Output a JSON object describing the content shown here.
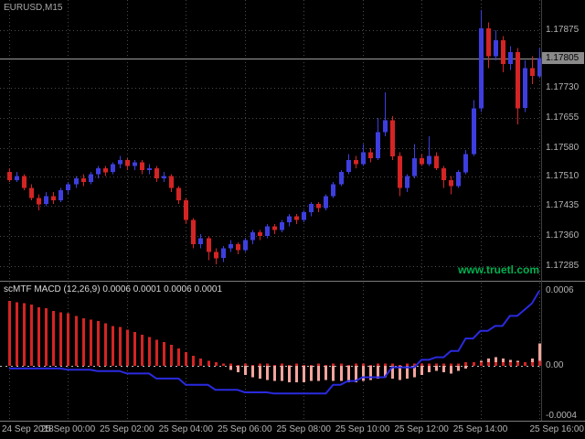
{
  "watermark": {
    "text": "www.truetl.com",
    "color": "#00b050"
  },
  "colors": {
    "background": "#000000",
    "grid": "#4a4a4a",
    "bull": "#3e3ee0",
    "bear": "#d42424",
    "bid_line": "#9c9c9c",
    "zero_line": "#c0c0c0",
    "axis_text": "#b4b4b4",
    "separator": "#7a7a7a"
  },
  "chart_data": [
    {
      "type": "candlestick",
      "title": "EURUSD,M15",
      "symbol": "EURUSD",
      "timeframe": "M15",
      "current_price": "1.17805",
      "y_ticks": [
        "1.17875",
        "1.17805",
        "1.17730",
        "1.17655",
        "1.17580",
        "1.17510",
        "1.17435",
        "1.17360",
        "1.17285"
      ],
      "x_ticks": [
        "24 Sep 2018",
        "25 Sep 00:00",
        "25 Sep 02:00",
        "25 Sep 04:00",
        "25 Sep 06:00",
        "25 Sep 08:00",
        "25 Sep 10:00",
        "25 Sep 12:00",
        "25 Sep 14:00",
        "25 Sep 16:00"
      ],
      "ohlc": [
        [
          1.1752,
          1.1753,
          1.17495,
          1.175
        ],
        [
          1.175,
          1.1752,
          1.17495,
          1.1751
        ],
        [
          1.1751,
          1.17515,
          1.17475,
          1.1748
        ],
        [
          1.1748,
          1.1749,
          1.1745,
          1.17455
        ],
        [
          1.17455,
          1.17465,
          1.17425,
          1.1744
        ],
        [
          1.1744,
          1.1747,
          1.17435,
          1.1746
        ],
        [
          1.1746,
          1.1747,
          1.1744,
          1.1745
        ],
        [
          1.1745,
          1.1748,
          1.17445,
          1.17475
        ],
        [
          1.17475,
          1.17495,
          1.17465,
          1.1749
        ],
        [
          1.1749,
          1.1751,
          1.1748,
          1.17505
        ],
        [
          1.17505,
          1.17515,
          1.17485,
          1.17495
        ],
        [
          1.17495,
          1.1752,
          1.1749,
          1.17515
        ],
        [
          1.17515,
          1.17535,
          1.17505,
          1.1753
        ],
        [
          1.1753,
          1.17535,
          1.1751,
          1.1752
        ],
        [
          1.1752,
          1.17545,
          1.17515,
          1.1754
        ],
        [
          1.1754,
          1.1756,
          1.1753,
          1.1755
        ],
        [
          1.1755,
          1.17555,
          1.17525,
          1.17535
        ],
        [
          1.17535,
          1.1755,
          1.17525,
          1.17545
        ],
        [
          1.17545,
          1.1755,
          1.17515,
          1.17525
        ],
        [
          1.17525,
          1.1754,
          1.17515,
          1.1753
        ],
        [
          1.1753,
          1.17535,
          1.17495,
          1.17505
        ],
        [
          1.17505,
          1.1752,
          1.17495,
          1.1751
        ],
        [
          1.1751,
          1.17515,
          1.1747,
          1.1748
        ],
        [
          1.1748,
          1.17485,
          1.1744,
          1.1745
        ],
        [
          1.1745,
          1.17455,
          1.1739,
          1.174
        ],
        [
          1.174,
          1.17405,
          1.1733,
          1.1734
        ],
        [
          1.1734,
          1.17365,
          1.1733,
          1.17355
        ],
        [
          1.17355,
          1.1736,
          1.173,
          1.1732
        ],
        [
          1.1732,
          1.1733,
          1.1729,
          1.17305
        ],
        [
          1.17305,
          1.17335,
          1.17295,
          1.1733
        ],
        [
          1.1733,
          1.1735,
          1.1732,
          1.1734
        ],
        [
          1.1734,
          1.17345,
          1.17315,
          1.17325
        ],
        [
          1.17325,
          1.17355,
          1.1732,
          1.1735
        ],
        [
          1.1735,
          1.17375,
          1.1734,
          1.1737
        ],
        [
          1.1737,
          1.17375,
          1.1735,
          1.1736
        ],
        [
          1.1736,
          1.1739,
          1.17355,
          1.17385
        ],
        [
          1.17385,
          1.1739,
          1.17365,
          1.17375
        ],
        [
          1.17375,
          1.174,
          1.1737,
          1.17395
        ],
        [
          1.17395,
          1.17415,
          1.17385,
          1.1741
        ],
        [
          1.1741,
          1.17415,
          1.1739,
          1.174
        ],
        [
          1.174,
          1.17425,
          1.17395,
          1.1742
        ],
        [
          1.1742,
          1.17445,
          1.1741,
          1.1744
        ],
        [
          1.1744,
          1.17445,
          1.1742,
          1.1743
        ],
        [
          1.1743,
          1.17465,
          1.17425,
          1.1746
        ],
        [
          1.1746,
          1.17495,
          1.17455,
          1.1749
        ],
        [
          1.1749,
          1.17525,
          1.17485,
          1.1752
        ],
        [
          1.1752,
          1.17565,
          1.17515,
          1.1755
        ],
        [
          1.1755,
          1.1756,
          1.1753,
          1.1754
        ],
        [
          1.1754,
          1.1759,
          1.17535,
          1.1757
        ],
        [
          1.1757,
          1.1758,
          1.17545,
          1.17555
        ],
        [
          1.17555,
          1.17655,
          1.1755,
          1.1762
        ],
        [
          1.1762,
          1.1772,
          1.1761,
          1.1765
        ],
        [
          1.1765,
          1.1766,
          1.1755,
          1.1756
        ],
        [
          1.1756,
          1.1757,
          1.1746,
          1.1748
        ],
        [
          1.1748,
          1.17515,
          1.1747,
          1.1751
        ],
        [
          1.1751,
          1.1759,
          1.17505,
          1.17555
        ],
        [
          1.17555,
          1.17565,
          1.17535,
          1.1754
        ],
        [
          1.1754,
          1.1761,
          1.17535,
          1.1756
        ],
        [
          1.1756,
          1.1757,
          1.17525,
          1.1753
        ],
        [
          1.1753,
          1.17535,
          1.1748,
          1.175
        ],
        [
          1.175,
          1.1751,
          1.17465,
          1.17485
        ],
        [
          1.17485,
          1.17525,
          1.1748,
          1.1752
        ],
        [
          1.1752,
          1.17575,
          1.17515,
          1.17565
        ],
        [
          1.17565,
          1.177,
          1.1756,
          1.1768
        ],
        [
          1.1768,
          1.17925,
          1.1767,
          1.1788
        ],
        [
          1.1788,
          1.17895,
          1.1778,
          1.1781
        ],
        [
          1.1781,
          1.17875,
          1.178,
          1.1785
        ],
        [
          1.1785,
          1.1786,
          1.1777,
          1.1779
        ],
        [
          1.1779,
          1.17835,
          1.17775,
          1.1782
        ],
        [
          1.1782,
          1.1783,
          1.1764,
          1.1768
        ],
        [
          1.1768,
          1.178,
          1.1767,
          1.1778
        ],
        [
          1.1778,
          1.1781,
          1.1774,
          1.1776
        ],
        [
          1.1776,
          1.1783,
          1.17755,
          1.17805
        ]
      ]
    },
    {
      "type": "macd",
      "title": "scMTF MACD (12,26,9) 0.0006 0.0001 0.0006 0.0001",
      "name": "scMTF MACD",
      "params": "12,26,9",
      "values_display": [
        "0.0006",
        "0.0001",
        "0.0006",
        "0.0001"
      ],
      "y_ticks": [
        "0.0006",
        "0.00",
        "-0.0004"
      ],
      "zero_level": 0,
      "series": [
        {
          "name": "mtf-macd-histogram",
          "type": "bar",
          "color": "#f2a49c",
          "values": [
            0,
            0,
            0,
            0,
            0,
            0,
            0,
            0,
            0,
            0,
            0,
            0,
            0,
            0,
            0,
            0,
            0,
            0,
            0,
            0,
            0,
            0,
            0,
            0,
            0,
            0,
            0,
            0,
            0,
            0,
            -3e-05,
            -5e-05,
            -7e-05,
            -9e-05,
            -0.0001,
            -0.00011,
            -0.00012,
            -0.00012,
            -0.00013,
            -0.00013,
            -0.00013,
            -0.00012,
            -0.00012,
            -0.00011,
            -0.00012,
            -0.00012,
            -0.00013,
            -0.00013,
            -0.00012,
            -0.00011,
            -0.0001,
            -9e-05,
            -0.0001,
            -0.00011,
            -0.0001,
            -9e-05,
            -7e-05,
            -5e-05,
            -4e-05,
            -5e-05,
            -6e-05,
            -4e-05,
            -2e-05,
            2e-05,
            4e-05,
            6e-05,
            7e-05,
            6e-05,
            5e-05,
            4e-05,
            3e-05,
            6e-05,
            0.00018
          ]
        },
        {
          "name": "macd-histogram",
          "type": "bar",
          "color": "#d42424",
          "values": [
            0.00052,
            0.00051,
            0.0005,
            0.00049,
            0.00047,
            0.00046,
            0.00044,
            0.00043,
            0.00042,
            0.0004,
            0.00038,
            0.00037,
            0.00036,
            0.00034,
            0.00032,
            0.00031,
            0.00029,
            0.00027,
            0.00025,
            0.00023,
            0.00021,
            0.00019,
            0.00017,
            0.00014,
            0.00011,
            8e-05,
            6e-05,
            4e-05,
            3e-05,
            2e-05,
            2e-05,
            1e-05,
            2e-05,
            1e-05,
            2e-05,
            2e-05,
            1e-05,
            2e-05,
            1e-05,
            2e-05,
            1e-05,
            1e-05,
            2e-05,
            1e-05,
            2e-05,
            2e-05,
            1e-05,
            2e-05,
            2e-05,
            1e-05,
            2e-05,
            2e-05,
            2e-05,
            1e-05,
            2e-05,
            2e-05,
            2e-05,
            2e-05,
            2e-05,
            2e-05,
            2e-05,
            2e-05,
            3e-05,
            3e-05,
            3e-05,
            3e-05,
            3e-05,
            3e-05,
            3e-05,
            3e-05,
            3e-05,
            3e-05,
            4e-05
          ]
        },
        {
          "name": "mtf-signal-line",
          "type": "line",
          "color": "#2a2ae0",
          "values": [
            -2e-05,
            -2e-05,
            -2e-05,
            -2e-05,
            -2e-05,
            -2e-05,
            -2e-05,
            -2e-05,
            -3e-05,
            -3e-05,
            -3e-05,
            -3e-05,
            -4e-05,
            -4e-05,
            -4e-05,
            -4e-05,
            -6e-05,
            -6e-05,
            -6e-05,
            -6e-05,
            -0.0001,
            -0.0001,
            -0.0001,
            -0.0001,
            -0.00015,
            -0.00015,
            -0.00015,
            -0.00015,
            -0.00019,
            -0.00019,
            -0.00019,
            -0.00019,
            -0.00021,
            -0.00021,
            -0.00021,
            -0.00021,
            -0.00022,
            -0.00022,
            -0.00022,
            -0.00022,
            -0.00022,
            -0.00022,
            -0.00022,
            -0.00022,
            -0.00015,
            -0.00015,
            -0.00012,
            -0.00012,
            -9e-05,
            -9e-05,
            -9e-05,
            -9e-05,
            -1e-05,
            -1e-05,
            -1e-05,
            -1e-05,
            5e-05,
            5e-05,
            7e-05,
            7e-05,
            0.00012,
            0.00012,
            0.00022,
            0.00022,
            0.00028,
            0.00028,
            0.00032,
            0.00032,
            0.0004,
            0.0004,
            0.00045,
            0.0005,
            0.0006
          ]
        }
      ]
    }
  ]
}
